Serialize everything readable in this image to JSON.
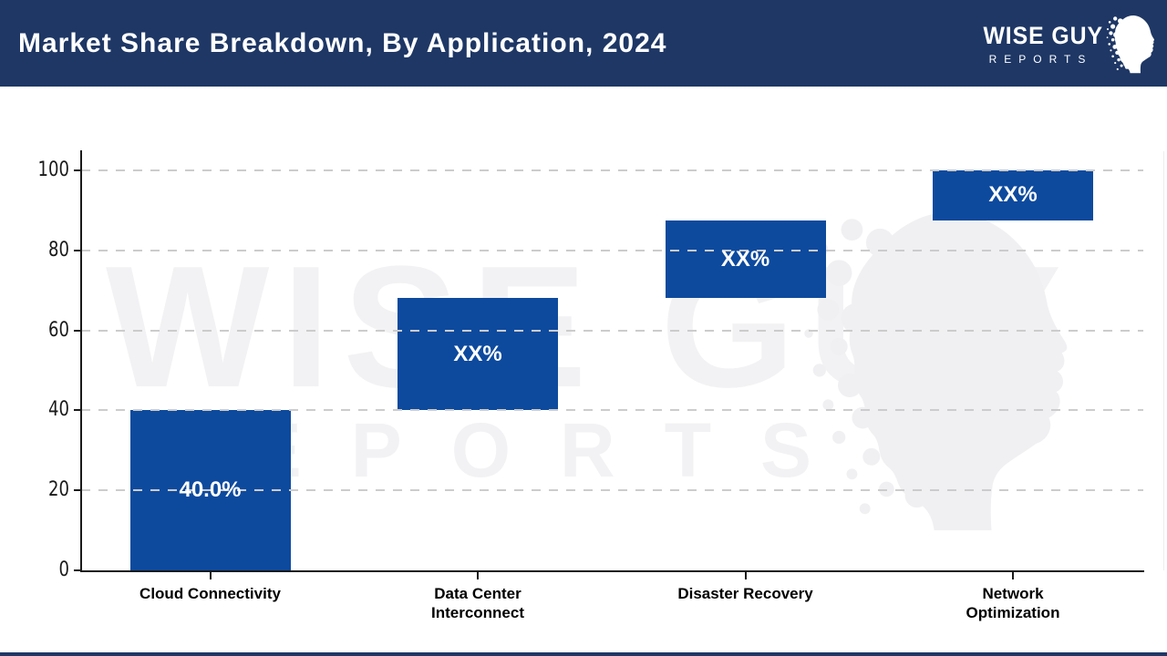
{
  "header": {
    "title": "Market Share Breakdown, By Application, 2024",
    "brand": {
      "wordmark": "WISE GUY",
      "subtext": "REPORTS"
    }
  },
  "watermark": {
    "wordmark": "WISE GUY",
    "subtext": "REPORTS"
  },
  "chart_data": {
    "type": "bar",
    "subtype": "waterfall",
    "title": "Market Share Breakdown, By Application, 2024",
    "categories": [
      "Cloud Connectivity",
      "Data Center Interconnect",
      "Disaster Recovery",
      "Network Optimization"
    ],
    "category_lines": [
      [
        "Cloud Connectivity"
      ],
      [
        "Data Center",
        "Interconnect"
      ],
      [
        "Disaster Recovery"
      ],
      [
        "Network",
        "Optimization"
      ]
    ],
    "segments": [
      {
        "category": "Cloud Connectivity",
        "start": 0,
        "end": 40,
        "label": "40.0%"
      },
      {
        "category": "Data Center Interconnect",
        "start": 40,
        "end": 68,
        "label": "XX%"
      },
      {
        "category": "Disaster Recovery",
        "start": 68,
        "end": 87.5,
        "label": "XX%"
      },
      {
        "category": "Network Optimization",
        "start": 87.5,
        "end": 100,
        "label": "XX%"
      }
    ],
    "ylim": [
      0,
      100
    ],
    "yticks": [
      0,
      20,
      40,
      60,
      80,
      100
    ],
    "xlabel": "",
    "ylabel": "",
    "grid": "horizontal-dashed",
    "legend": "none",
    "bar_color": "#0d4a9e",
    "bar_label_color": "#ffffff"
  },
  "colors": {
    "header_bg": "#1e3765",
    "bar": "#0d4a9e",
    "grid": "#cccccc",
    "axis": "#1a1a1a",
    "watermark": "#f2f2f4"
  }
}
